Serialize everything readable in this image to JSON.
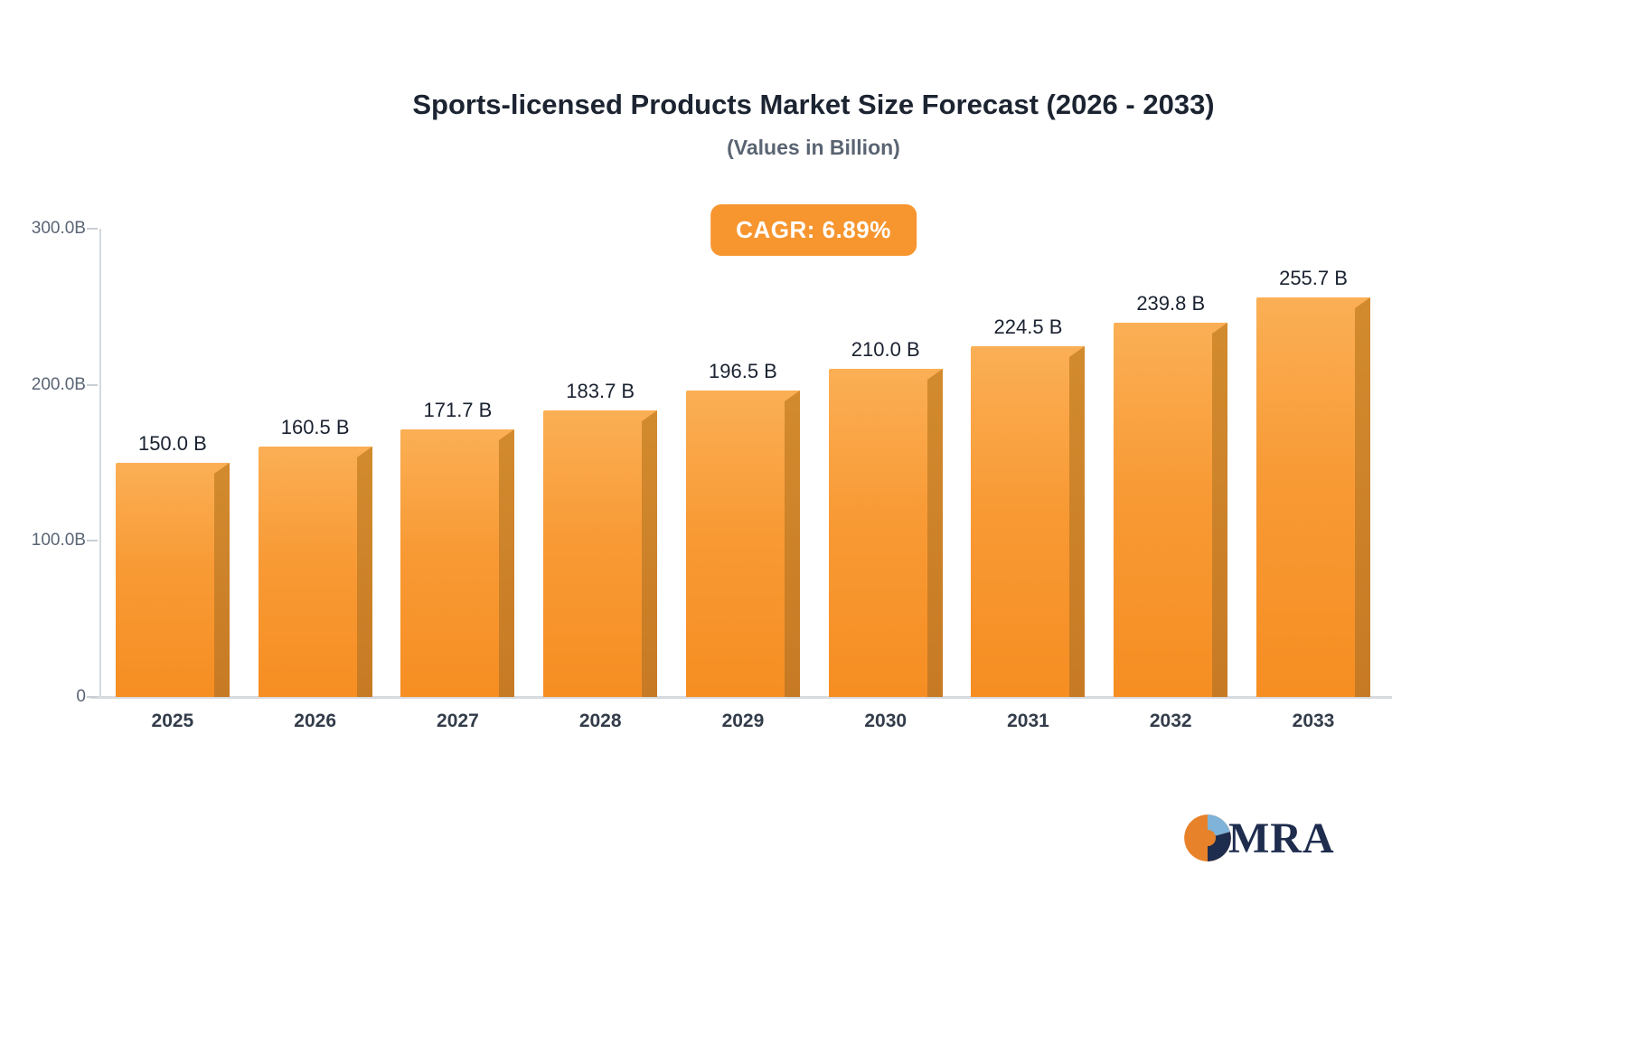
{
  "title": "Sports-licensed Products Market Size Forecast (2026 - 2033)",
  "subtitle": "(Values in Billion)",
  "cagr_label": "CAGR: 6.89%",
  "logo_text": "MRA",
  "colors": {
    "accent": "#F7952F",
    "bar_top": "#FBAF55",
    "bar_bottom": "#F68E22",
    "bar_side": "#C77A24",
    "title_text": "#1c2431",
    "axis_text": "#5a6575"
  },
  "chart_data": {
    "type": "bar",
    "title": "Sports-licensed Products Market Size Forecast (2026 - 2033)",
    "subtitle": "(Values in Billion)",
    "annotation": "CAGR: 6.89%",
    "categories": [
      "2025",
      "2026",
      "2027",
      "2028",
      "2029",
      "2030",
      "2031",
      "2032",
      "2033"
    ],
    "values": [
      150.0,
      160.5,
      171.7,
      183.7,
      196.5,
      210.0,
      224.5,
      239.8,
      255.7
    ],
    "value_labels": [
      "150.0 B",
      "160.5 B",
      "171.7 B",
      "183.7 B",
      "196.5 B",
      "210.0 B",
      "224.5 B",
      "239.8 B",
      "255.7 B"
    ],
    "xlabel": "",
    "ylabel": "",
    "ylim": [
      0,
      300
    ],
    "y_ticks": [
      {
        "label": "300.0B",
        "value": 300
      },
      {
        "label": "200.0B",
        "value": 200
      },
      {
        "label": "100.0B",
        "value": 100
      },
      {
        "label": "0",
        "value": 0
      }
    ],
    "grid": false,
    "legend": false
  }
}
